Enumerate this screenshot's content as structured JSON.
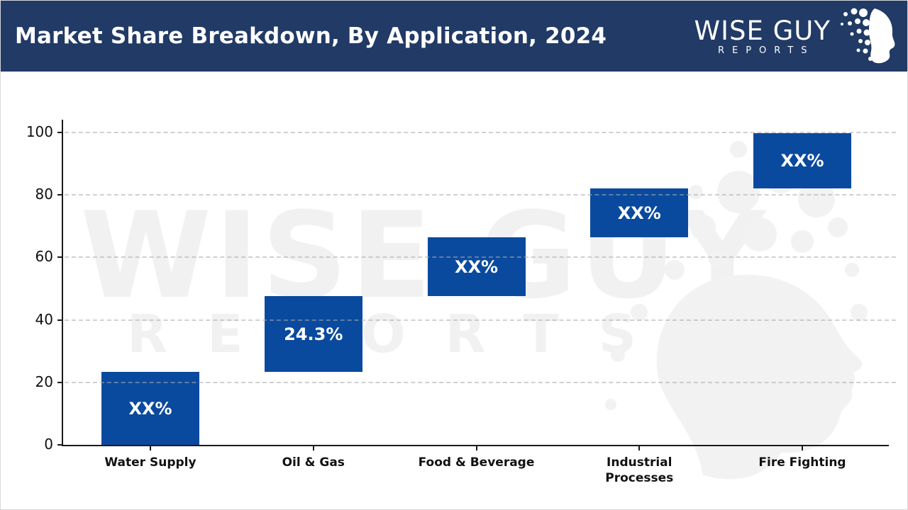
{
  "header": {
    "title": "Market Share Breakdown, By Application, 2024",
    "bg_color": "#213a66",
    "logo": {
      "line1": "WISE GUY",
      "line2": "REPORTS"
    }
  },
  "watermark": {
    "line1": "WISE GUY",
    "line2": "REPORTS"
  },
  "chart_data": {
    "type": "bar",
    "subtype": "waterfall",
    "title": "Market Share Breakdown, By Application, 2024",
    "categories": [
      "Water Supply",
      "Oil & Gas",
      "Food & Beverage",
      "Industrial\nProcesses",
      "Fire Fighting"
    ],
    "series": [
      {
        "name": "Market Share %",
        "starts": [
          0,
          23.3,
          47.6,
          66.4,
          82.1
        ],
        "heights": [
          23.3,
          24.3,
          18.8,
          15.7,
          17.7
        ]
      }
    ],
    "bar_labels": [
      "XX%",
      "24.3%",
      "XX%",
      "XX%",
      "XX%"
    ],
    "yticks": [
      0,
      20,
      40,
      60,
      80,
      100
    ],
    "ylim": [
      0,
      100
    ],
    "xlabel": "",
    "ylabel": "",
    "grid": "dashed-horizontal",
    "legend": "none",
    "bar_color": "#0a4a9e",
    "bar_label_color": "#ffffff",
    "axis_color": "#1a1a1a",
    "tick_label_color": "#111111"
  }
}
